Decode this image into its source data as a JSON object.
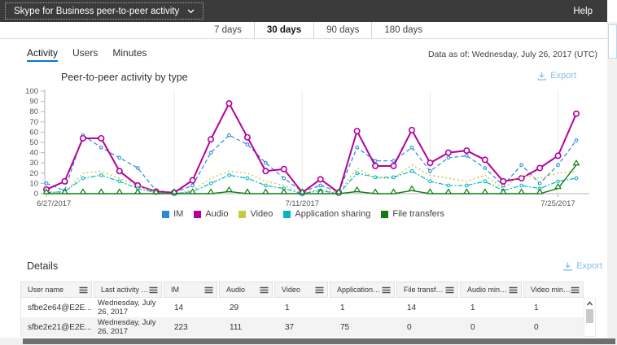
{
  "top_bar": {
    "title": "Skype for Business peer-to-peer activity",
    "help_label": "Help"
  },
  "period_tabs": {
    "items": [
      {
        "label": "7 days"
      },
      {
        "label": "30 days"
      },
      {
        "label": "90 days"
      },
      {
        "label": "180 days"
      }
    ],
    "selected": "30 days"
  },
  "view_tabs": {
    "items": [
      {
        "label": "Activity"
      },
      {
        "label": "Users"
      },
      {
        "label": "Minutes"
      }
    ],
    "selected": "Activity"
  },
  "data_as_of": "Data as of: Wednesday, July 26, 2017 (UTC)",
  "chart": {
    "title": "Peer-to-peer activity by type",
    "export_label": "Export"
  },
  "chart_data": {
    "type": "line",
    "title": "Peer-to-peer activity by type",
    "x_start_date": "6/27/2017",
    "x_end_date": "7/26/2017",
    "x_tick_labels": [
      "6/27/2017",
      "7/11/2017",
      "7/25/2017"
    ],
    "x_tick_indices": [
      0,
      14,
      28
    ],
    "week_gridline_indices": [
      7,
      14,
      21,
      28
    ],
    "ylim": [
      0,
      100
    ],
    "y_ticks": [
      0,
      10,
      20,
      30,
      40,
      50,
      60,
      70,
      80,
      90,
      100
    ],
    "grid": "vertical-weekly",
    "legend_position": "bottom",
    "series": [
      {
        "name": "IM",
        "color": "#2b88d8",
        "dash": "5,3",
        "marker": "circle",
        "marker_r": 1.8,
        "width": 1.2,
        "values": [
          10,
          3,
          57,
          45,
          35,
          25,
          3,
          1,
          8,
          40,
          57,
          48,
          30,
          15,
          2,
          8,
          2,
          45,
          32,
          32,
          45,
          22,
          35,
          37,
          25,
          8,
          28,
          10,
          28,
          52
        ]
      },
      {
        "name": "Audio",
        "color": "#b4009e",
        "dash": "",
        "marker": "circle",
        "marker_r": 3.2,
        "width": 2,
        "values": [
          4,
          12,
          54,
          54,
          22,
          8,
          2,
          1,
          13,
          53,
          88,
          55,
          22,
          24,
          1,
          14,
          1,
          61,
          27,
          27,
          62,
          30,
          40,
          42,
          33,
          12,
          15,
          25,
          37,
          78
        ]
      },
      {
        "name": "Video",
        "color": "#c9c93c",
        "dash": "2,3",
        "marker": "none",
        "marker_r": 0,
        "width": 1.4,
        "values": [
          2,
          1,
          20,
          22,
          15,
          8,
          1,
          0,
          3,
          15,
          22,
          20,
          12,
          8,
          1,
          4,
          1,
          25,
          15,
          15,
          28,
          18,
          15,
          12,
          18,
          5,
          18,
          15,
          20,
          22
        ]
      },
      {
        "name": "Application sharing",
        "color": "#00b7c3",
        "dash": "6,2,2,2",
        "marker": "circle",
        "marker_r": 1.8,
        "width": 1.2,
        "values": [
          1,
          2,
          15,
          18,
          12,
          5,
          1,
          0,
          2,
          10,
          18,
          15,
          8,
          5,
          0,
          3,
          0,
          20,
          16,
          16,
          22,
          12,
          8,
          8,
          12,
          3,
          8,
          5,
          12,
          15
        ]
      },
      {
        "name": "File transfers",
        "color": "#107c10",
        "dash": "",
        "marker": "triangle",
        "marker_r": 3.4,
        "width": 1.4,
        "values": [
          0,
          0,
          0,
          0,
          0,
          0,
          0,
          0,
          0,
          0,
          2,
          0,
          0,
          0,
          0,
          0,
          0,
          2,
          0,
          0,
          3,
          0,
          0,
          0,
          0,
          0,
          0,
          0,
          5,
          28
        ]
      }
    ]
  },
  "details": {
    "title": "Details",
    "export_label": "Export",
    "table": {
      "columns": [
        "User name",
        "Last activity d...",
        "IM",
        "Audio",
        "Video",
        "Application s...",
        "File transfers",
        "Audio minutes",
        "Video minutes"
      ],
      "rows": [
        [
          "sfbe2e64@E2E...",
          "Wednesday, July 26, 2017",
          "14",
          "29",
          "1",
          "1",
          "14",
          "1",
          "1"
        ],
        [
          "sfbe2e21@E2E...",
          "Wednesday, July 26, 2017",
          "223",
          "111",
          "37",
          "75",
          "0",
          "0",
          "0"
        ]
      ]
    }
  },
  "colors": {
    "topbar": "#3b3b3b",
    "accent": "#0078d7",
    "im": "#2b88d8",
    "audio": "#b4009e",
    "video": "#c9c93c",
    "application_sharing": "#00b7c3",
    "file_transfers": "#107c10"
  }
}
